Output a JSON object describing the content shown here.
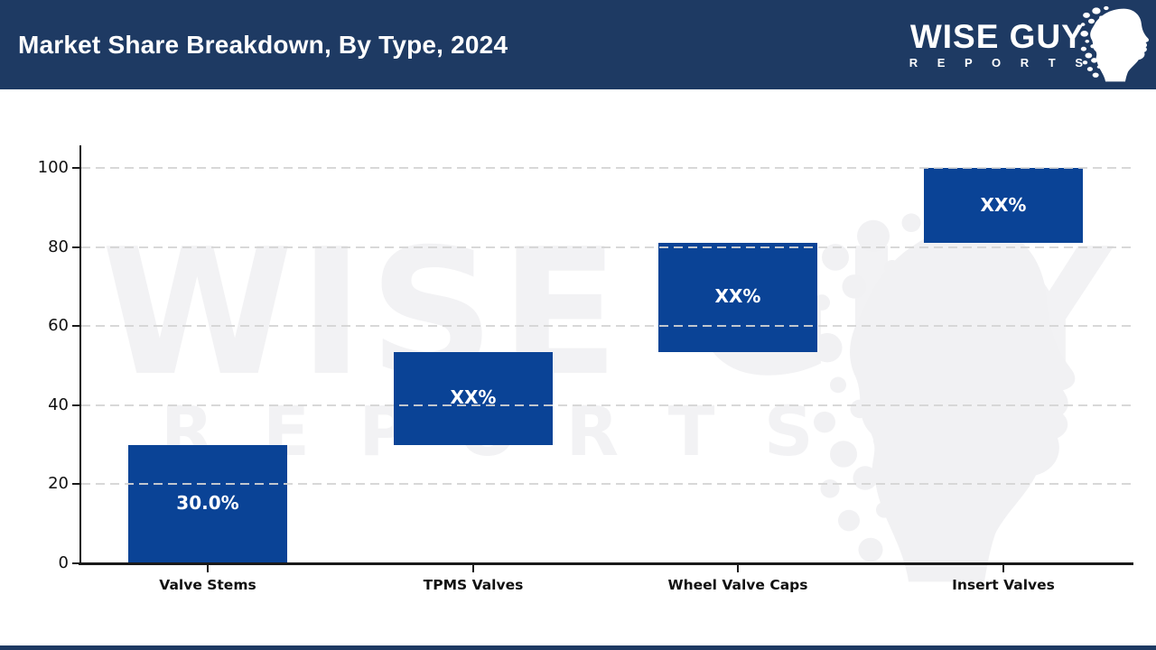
{
  "header": {
    "title": "Market Share Breakdown, By Type, 2024",
    "bg_color": "#1e3a63",
    "logo": {
      "line1": "WISE GUY",
      "line2": "R E P O R T S"
    }
  },
  "watermark": {
    "line1": "WISE GUY",
    "line2": "R E P O R T S"
  },
  "footer": {
    "border_color": "#1e3a63"
  },
  "chart_data": {
    "type": "bar",
    "subtype": "waterfall",
    "title": "Market Share Breakdown, By Type, 2024",
    "categories": [
      "Valve Stems",
      "TPMS Valves",
      "Wheel Valve Caps",
      "Insert Valves"
    ],
    "segments": [
      {
        "category": "Valve Stems",
        "start": 0,
        "end": 30,
        "label": "30.0%"
      },
      {
        "category": "TPMS Valves",
        "start": 30,
        "end": 53.5,
        "label": "XX%"
      },
      {
        "category": "Wheel Valve Caps",
        "start": 53.5,
        "end": 81,
        "label": "XX%"
      },
      {
        "category": "Insert Valves",
        "start": 81,
        "end": 100,
        "label": "XX%"
      }
    ],
    "yticks": [
      0,
      20,
      40,
      60,
      80,
      100
    ],
    "ylim": [
      0,
      105
    ],
    "xlabel": "",
    "ylabel": "",
    "grid": "dashed-horizontal-over-bars",
    "legend": "none",
    "bar_color": "#0a4396",
    "grid_color": "#d4d4d4",
    "axis_color": "#1a1a1a"
  }
}
